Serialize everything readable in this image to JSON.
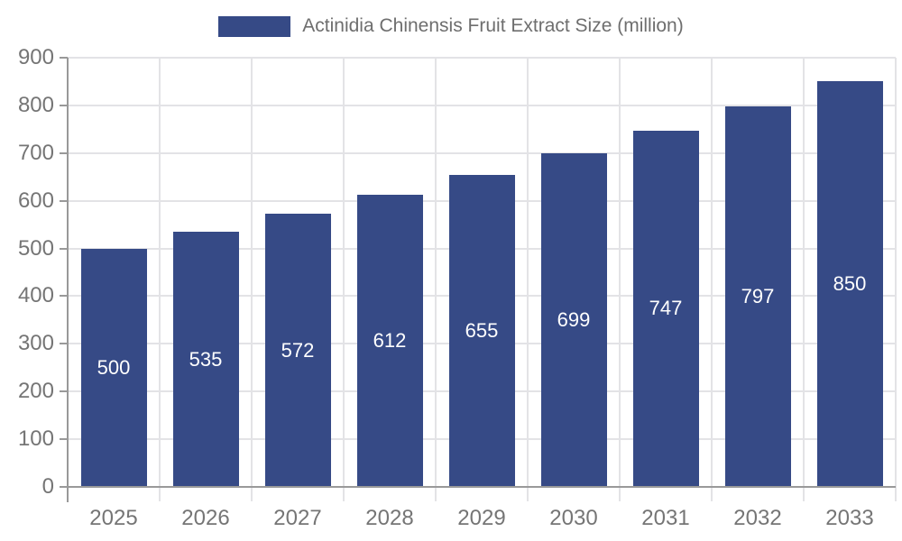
{
  "chart_data": {
    "type": "bar",
    "title": "",
    "legend": "Actinidia Chinensis Fruit Extract Size (million)",
    "series_name": "Actinidia Chinensis Fruit Extract Size (million)",
    "categories": [
      "2025",
      "2026",
      "2027",
      "2028",
      "2029",
      "2030",
      "2031",
      "2032",
      "2033"
    ],
    "values": [
      500,
      535,
      572,
      612,
      655,
      699,
      747,
      797,
      850
    ],
    "xlabel": "",
    "ylabel": "",
    "ylim": [
      0,
      900
    ],
    "ytick_step": 100,
    "grid": "horizontal and vertical light gray",
    "legend_position": "top",
    "value_labels": "centered inside bars",
    "colors": {
      "bar": "#364A86",
      "axis": "#999999",
      "grid": "#e3e3e6",
      "tick_label": "#757575",
      "value_label": "#ffffff",
      "legend_text": "#6e6e6e",
      "background": "#ffffff"
    }
  }
}
